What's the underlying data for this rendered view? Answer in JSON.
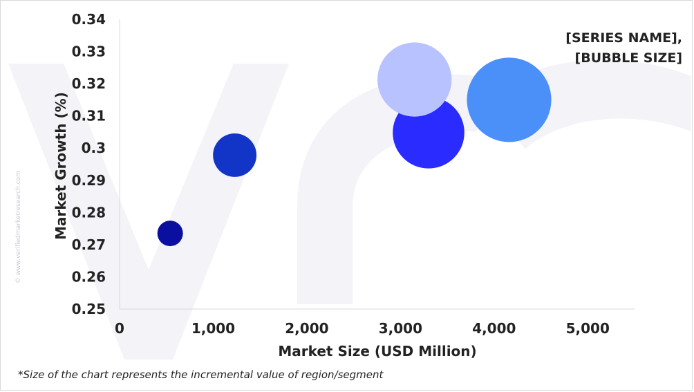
{
  "watermark_text": "© www.verifiedmarketresearch.com",
  "footnote": "*Size of the chart represents the incremental value of region/segment",
  "chart_data": {
    "type": "scatter",
    "xlabel": "Market Size (USD Million)",
    "ylabel": "Market Growth (%)",
    "legend_note": [
      "[SERIES NAME],",
      "[BUBBLE SIZE]"
    ],
    "xlim": [
      0,
      5500
    ],
    "ylim": [
      0.25,
      0.34
    ],
    "x_ticks": [
      0,
      1000,
      2000,
      3000,
      4000,
      5000
    ],
    "x_tick_labels": [
      "0",
      "1,000",
      "2,000",
      "3,000",
      "4,000",
      "5,000"
    ],
    "y_ticks": [
      0.25,
      0.26,
      0.27,
      0.28,
      0.29,
      0.3,
      0.31,
      0.32,
      0.33,
      0.34
    ],
    "y_tick_labels": [
      "0.25",
      "0.26",
      "0.27",
      "0.28",
      "0.29",
      "0.3",
      "0.31",
      "0.32",
      "0.33",
      "0.34"
    ],
    "grid": false,
    "points": [
      {
        "x": 540,
        "y": 0.2735,
        "size": 1.0,
        "color": "#0a0fa0"
      },
      {
        "x": 1230,
        "y": 0.2978,
        "size": 1.7,
        "color": "#1235c8"
      },
      {
        "x": 3300,
        "y": 0.3048,
        "size": 2.8,
        "color": "#2a2cff"
      },
      {
        "x": 3150,
        "y": 0.3213,
        "size": 2.9,
        "color": "#b8c2ff"
      },
      {
        "x": 4160,
        "y": 0.315,
        "size": 3.3,
        "color": "#4b8ff9"
      }
    ]
  }
}
